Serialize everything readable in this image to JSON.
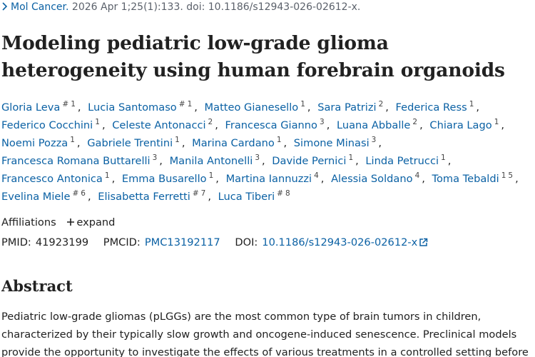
{
  "citation": {
    "journal": "Mol Cancer.",
    "details": "2026 Apr 1;25(1):133. doi: 10.1186/s12943-026-02612-x."
  },
  "title": "Modeling pediatric low-grade glioma heterogeneity using human forebrain organoids",
  "authors": [
    {
      "name": "Gloria Leva",
      "marks": [
        "#",
        "1"
      ]
    },
    {
      "name": "Lucia Santomaso",
      "marks": [
        "#",
        "1"
      ]
    },
    {
      "name": "Matteo Gianesello",
      "marks": [
        "1"
      ]
    },
    {
      "name": "Sara Patrizi",
      "marks": [
        "2"
      ]
    },
    {
      "name": "Federica Ress",
      "marks": [
        "1"
      ]
    },
    {
      "name": "Federico Cocchini",
      "marks": [
        "1"
      ]
    },
    {
      "name": "Celeste Antonacci",
      "marks": [
        "2"
      ]
    },
    {
      "name": "Francesca Gianno",
      "marks": [
        "3"
      ]
    },
    {
      "name": "Luana Abballe",
      "marks": [
        "2"
      ]
    },
    {
      "name": "Chiara Lago",
      "marks": [
        "1"
      ]
    },
    {
      "name": "Noemi Pozza",
      "marks": [
        "1"
      ]
    },
    {
      "name": "Gabriele Trentini",
      "marks": [
        "1"
      ]
    },
    {
      "name": "Marina Cardano",
      "marks": [
        "1"
      ]
    },
    {
      "name": "Simone Minasi",
      "marks": [
        "3"
      ]
    },
    {
      "name": "Francesca Romana Buttarelli",
      "marks": [
        "3"
      ]
    },
    {
      "name": "Manila Antonelli",
      "marks": [
        "3"
      ]
    },
    {
      "name": "Davide Pernici",
      "marks": [
        "1"
      ]
    },
    {
      "name": "Linda Petrucci",
      "marks": [
        "1"
      ]
    },
    {
      "name": "Francesco Antonica",
      "marks": [
        "1"
      ]
    },
    {
      "name": "Emma Busarello",
      "marks": [
        "1"
      ]
    },
    {
      "name": "Martina Iannuzzi",
      "marks": [
        "4"
      ]
    },
    {
      "name": "Alessia Soldano",
      "marks": [
        "4"
      ]
    },
    {
      "name": "Toma Tebaldi",
      "marks": [
        "1",
        "5"
      ]
    },
    {
      "name": "Evelina Miele",
      "marks": [
        "#",
        "6"
      ]
    },
    {
      "name": "Elisabetta Ferretti",
      "marks": [
        "#",
        "7"
      ]
    },
    {
      "name": "Luca Tiberi",
      "marks": [
        "#",
        "8"
      ]
    }
  ],
  "affiliations": {
    "label": "Affiliations",
    "toggle": "expand"
  },
  "identifiers": {
    "pmid_label": "PMID:",
    "pmid": "41923199",
    "pmcid_label": "PMCID:",
    "pmcid": "PMC13192117",
    "doi_label": "DOI:",
    "doi": "10.1186/s12943-026-02612-x"
  },
  "abstract": {
    "heading": "Abstract",
    "text": "Pediatric low-grade gliomas (pLGGs) are the most common type of brain tumors in children, characterized by their typically slow growth and oncogene-induced senescence. Preclinical models provide the opportunity to investigate the effects of various treatments in a controlled setting before"
  }
}
